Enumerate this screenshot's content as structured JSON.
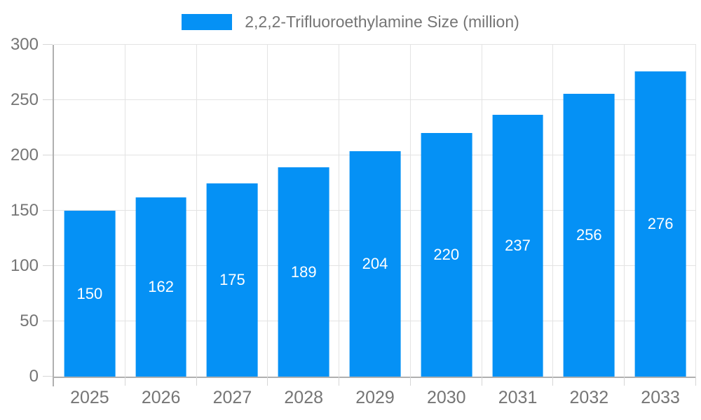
{
  "legend": {
    "label": "2,2,2-Trifluoroethylamine Size (million)"
  },
  "colors": {
    "bar": "#0591f5",
    "axis_text": "#757575",
    "axis_line": "#b0b0b0",
    "gridline": "#e3e3e3",
    "value_label": "#ffffff",
    "background": "#ffffff"
  },
  "chart_data": {
    "type": "bar",
    "title": "2,2,2-Trifluoroethylamine Size (million)",
    "categories": [
      "2025",
      "2026",
      "2027",
      "2028",
      "2029",
      "2030",
      "2031",
      "2032",
      "2033"
    ],
    "values": [
      150,
      162,
      175,
      189,
      204,
      220,
      237,
      256,
      276
    ],
    "xlabel": "",
    "ylabel": "",
    "ylim": [
      0,
      300
    ],
    "yticks": [
      0,
      50,
      100,
      150,
      200,
      250,
      300
    ],
    "grid": true,
    "legend_position": "top",
    "bar_color": "#0591f5",
    "value_label_style": "white text centered inside bar"
  }
}
